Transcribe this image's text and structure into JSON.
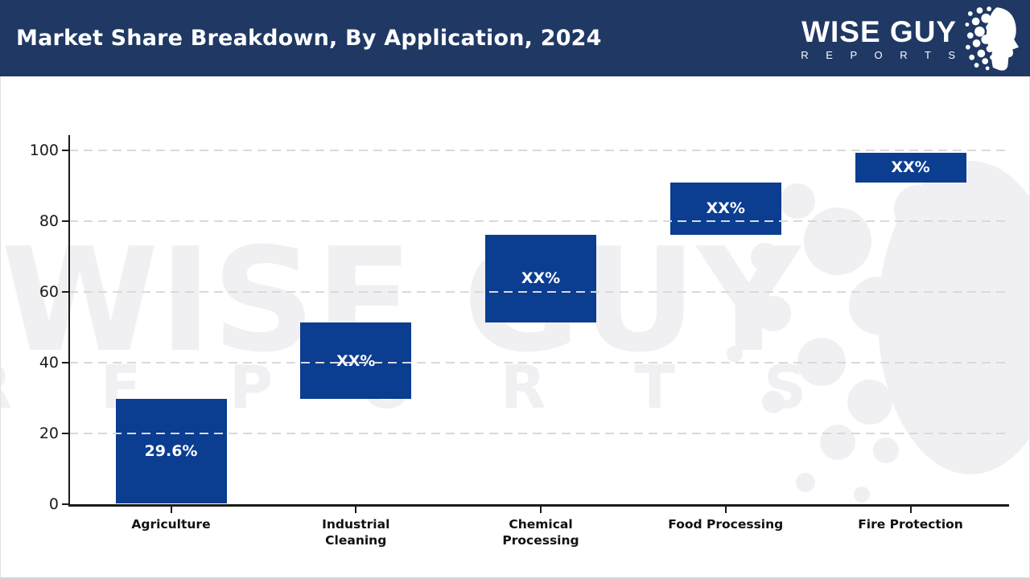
{
  "header": {
    "title": "Market Share Breakdown, By Application, 2024",
    "logo": {
      "primary": "WISE GUY",
      "secondary": "R E P O R T S"
    }
  },
  "watermark": {
    "primary": "WISE GUY",
    "secondary": "R E P O R T S"
  },
  "chart_data": {
    "type": "bar",
    "subtype": "waterfall",
    "title": "Market Share Breakdown, By Application, 2024",
    "categories": [
      "Agriculture",
      "Industrial\nCleaning",
      "Chemical\nProcessing",
      "Food Processing",
      "Fire Protection"
    ],
    "segments": [
      {
        "category": "Agriculture",
        "start": 0,
        "end": 29.6,
        "label": "29.6%"
      },
      {
        "category": "Industrial Cleaning",
        "start": 29.6,
        "end": 51.3,
        "label": "XX%"
      },
      {
        "category": "Chemical Processing",
        "start": 51.3,
        "end": 76.2,
        "label": "XX%"
      },
      {
        "category": "Food Processing",
        "start": 76.2,
        "end": 90.9,
        "label": "XX%"
      },
      {
        "category": "Fire Protection",
        "start": 90.9,
        "end": 99.4,
        "label": "XX%"
      }
    ],
    "yticks": [
      0,
      20,
      40,
      60,
      80,
      100
    ],
    "ylim": [
      0,
      104
    ],
    "grid": "dashed-horizontal",
    "legend": "none",
    "colors": {
      "bar": "#0b3d91",
      "bar_label": "#ffffff",
      "grid": "#d9d9d9",
      "axis": "#1a1a1a",
      "header_bg": "#1f3864",
      "watermark": "#f0f0f3"
    }
  }
}
